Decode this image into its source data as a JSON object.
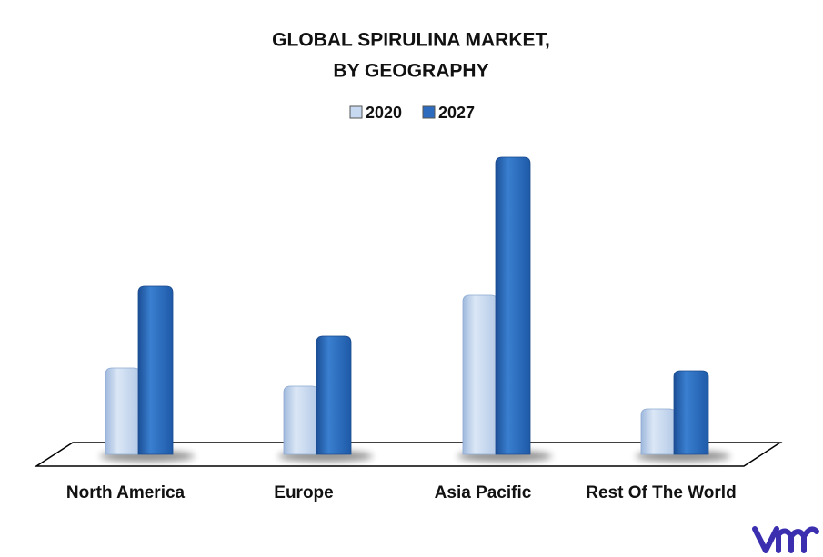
{
  "chart_data": {
    "type": "bar3d",
    "title": [
      "GLOBAL SPIRULINA MARKET,",
      "BY GEOGRAPHY"
    ],
    "categories": [
      "North America",
      "Europe",
      "Asia Pacific",
      "Rest Of The World"
    ],
    "series": [
      {
        "name": "2020",
        "color": "#c6d9f0",
        "values": [
          95,
          75,
          175,
          50
        ]
      },
      {
        "name": "2027",
        "color": "#2d6bbf",
        "values": [
          185,
          130,
          327,
          92
        ]
      }
    ],
    "legend": "top"
  }
}
